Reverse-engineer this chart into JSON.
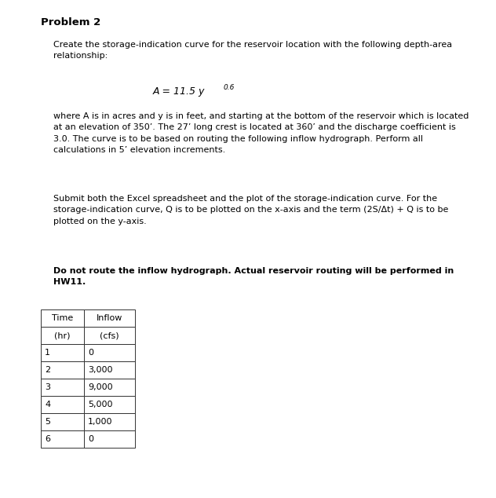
{
  "title": "Problem 2",
  "para1": "Create the storage-indication curve for the reservoir location with the following depth-area\nrelationship:",
  "formula_base": "A = 11.5 y",
  "formula_superscript": "0.6",
  "para2": "where A is in acres and y is in feet, and starting at the bottom of the reservoir which is located\nat an elevation of 350’. The 27’ long crest is located at 360’ and the discharge coefficient is\n3.0. The curve is to be based on routing the following inflow hydrograph. Perform all\ncalculations in 5’ elevation increments.",
  "para3": "Submit both the Excel spreadsheet and the plot of the storage-indication curve. For the\nstorage-indication curve, Q is to be plotted on the x-axis and the term (2S/Δt) + Q is to be\nplotted on the y-axis.",
  "bold_text": "Do not route the inflow hydrograph. Actual reservoir routing will be performed in\nHW11.",
  "table_header_row1": [
    "Time",
    "Inflow"
  ],
  "table_header_row2": [
    "(hr)",
    "(cfs)"
  ],
  "table_data": [
    [
      "1",
      "0"
    ],
    [
      "2",
      "3,000"
    ],
    [
      "3",
      "9,000"
    ],
    [
      "4",
      "5,000"
    ],
    [
      "5",
      "1,000"
    ],
    [
      "6",
      "0"
    ]
  ],
  "background_color": "#ffffff",
  "text_color": "#000000",
  "font_size_title": 9.5,
  "font_size_body": 8.0,
  "font_size_formula": 9.0,
  "font_size_bold": 8.0,
  "font_size_table": 8.0
}
